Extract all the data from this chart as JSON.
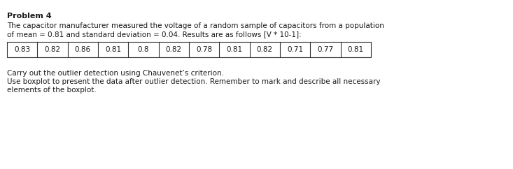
{
  "title": "Problem 4",
  "paragraph1": "The capacitor manufacturer measured the voltage of a random sample of capacitors from a population",
  "paragraph2": "of mean = 0.81 and standard deviation = 0.04. Results are as follows [V * 10-1]:",
  "table_values": [
    "0.83",
    "0.82",
    "0.86",
    "0.81",
    "0.8",
    "0.82",
    "0.78",
    "0.81",
    "0.82",
    "0.71",
    "0.77",
    "0.81"
  ],
  "footer1": "Carry out the outlier detection using Chauvenet’s criterion.",
  "footer2": "Use boxplot to present the data after outlier detection. Remember to mark and describe all necessary",
  "footer3": "elements of the boxplot.",
  "bg_color": "#ffffff",
  "text_color": "#1a1a1a",
  "font_size_title": 8.0,
  "font_size_body": 7.5,
  "table_font_size": 7.5,
  "fig_width": 7.33,
  "fig_height": 2.42,
  "dpi": 100
}
